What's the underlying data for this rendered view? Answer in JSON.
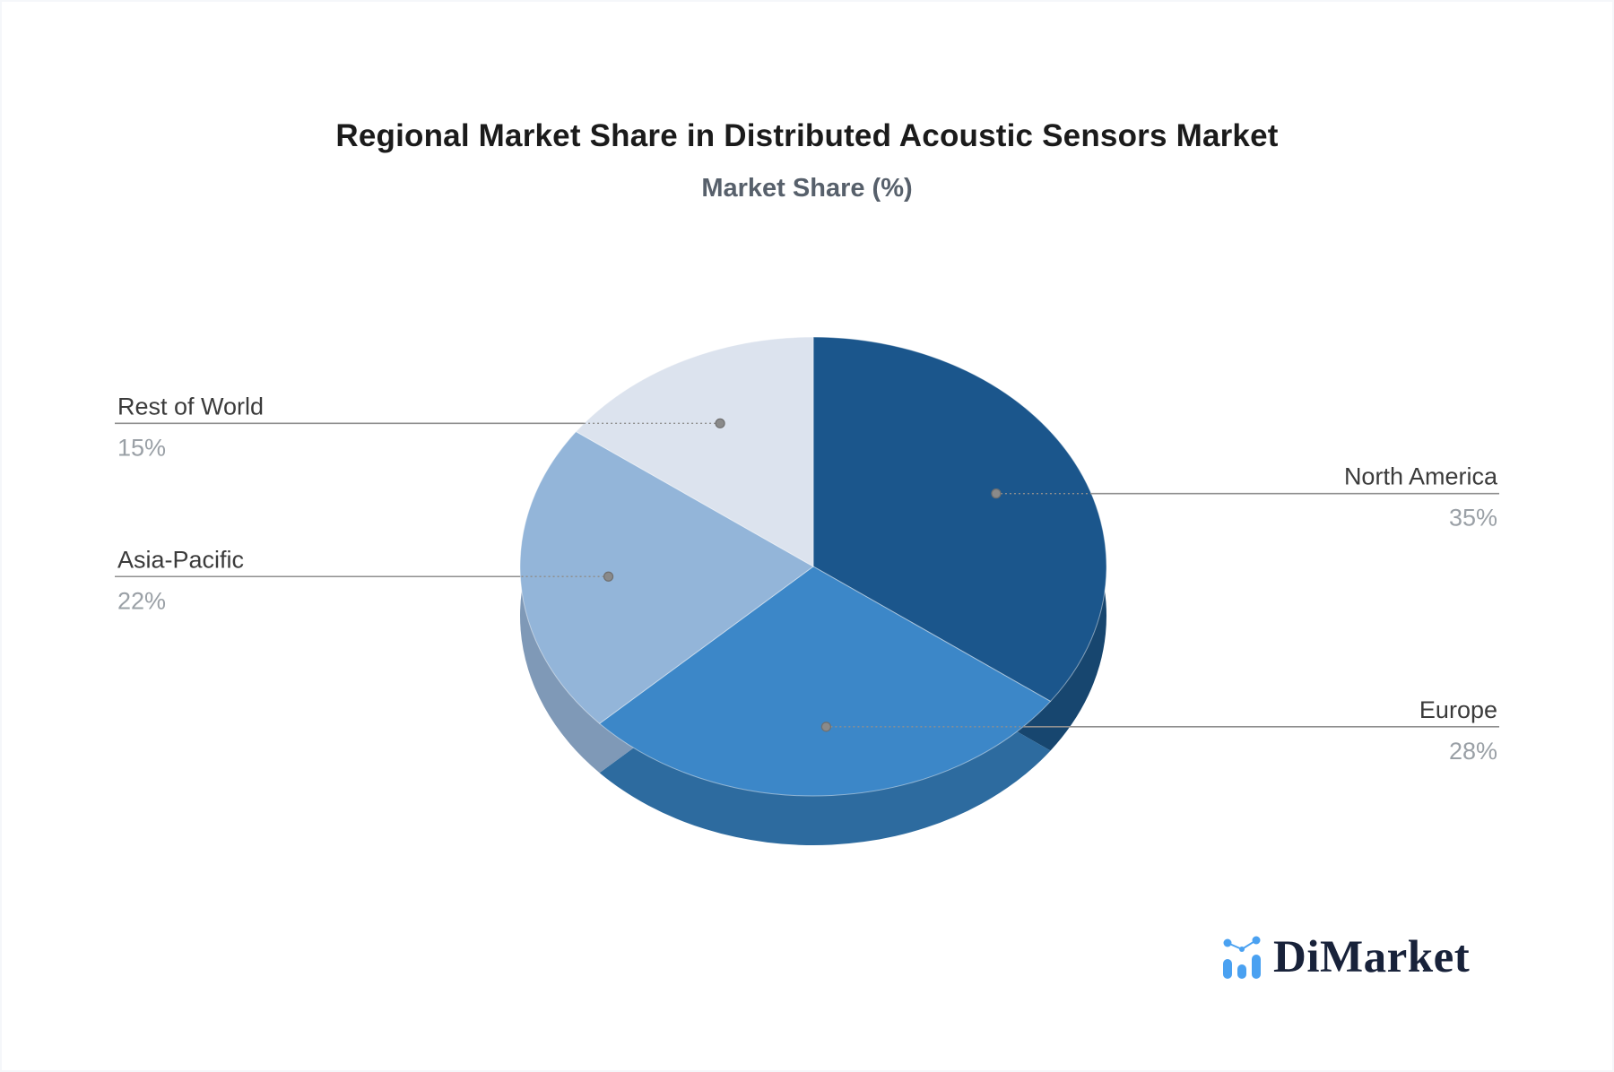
{
  "header": {
    "title": "Regional Market Share in Distributed Acoustic Sensors Market",
    "subtitle": "Market Share (%)"
  },
  "chart_data": {
    "type": "pie",
    "style_3d": true,
    "title": "Regional Market Share in Distributed Acoustic Sensors Market",
    "subtitle": "Market Share (%)",
    "unit": "%",
    "categories": [
      "North America",
      "Europe",
      "Asia-Pacific",
      "Rest of World"
    ],
    "values": [
      35,
      28,
      22,
      15
    ],
    "slices": [
      {
        "label": "North America",
        "value": 35,
        "pct_label": "35%",
        "color": "#1b568c",
        "side_color": "#17466f",
        "label_side": "right"
      },
      {
        "label": "Europe",
        "value": 28,
        "pct_label": "28%",
        "color": "#3c87c8",
        "side_color": "#2d6b9f",
        "label_side": "right"
      },
      {
        "label": "Asia-Pacific",
        "value": 22,
        "pct_label": "22%",
        "color": "#93b5d9",
        "side_color": "#7f99b7",
        "label_side": "left"
      },
      {
        "label": "Rest of World",
        "value": 15,
        "pct_label": "15%",
        "color": "#dce3ee",
        "side_color": "#b3c0d6",
        "label_side": "left"
      }
    ],
    "start_angle_deg": 0,
    "clockwise": true,
    "legend": "none",
    "callout_style": {
      "line_color": "#8f8f8f",
      "dot_color": "#8a8a8a",
      "name_color": "#3b3b3b",
      "pct_color": "#9aa0a6"
    },
    "background": "#ffffff"
  },
  "branding": {
    "logo_text": "DiMarket",
    "icon_color": "#4aa1f1",
    "text_color": "#18223a"
  }
}
